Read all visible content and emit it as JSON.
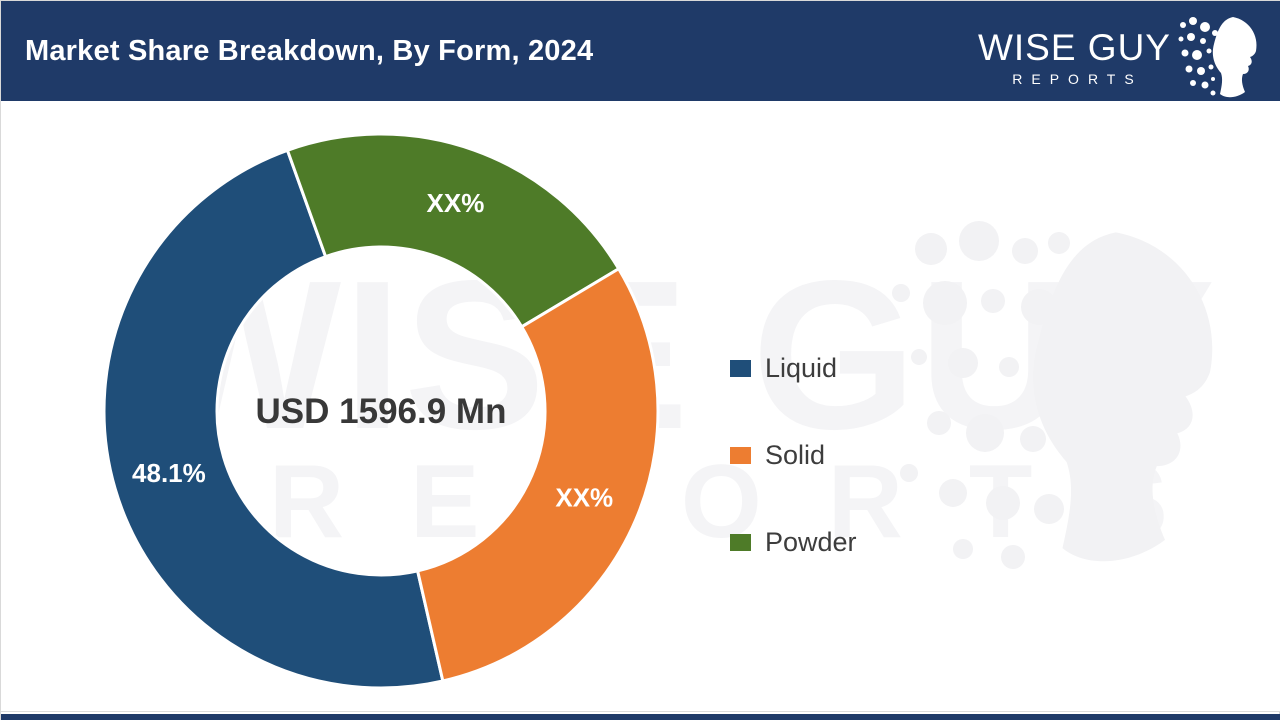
{
  "header": {
    "title": "Market Share Breakdown, By Form, 2024",
    "logo": {
      "line1": "WISE GUY",
      "line2": "REPORTS"
    }
  },
  "watermark": {
    "line1": "WISE GUY",
    "line2": "REPORTS"
  },
  "colors": {
    "header_bg": "#1F3A68",
    "footer_bg": "#1F3A68",
    "text_dark": "#383838",
    "watermark": "#F4F4F6"
  },
  "chart_data": {
    "type": "pie",
    "subtype": "donut",
    "title": "Market Share Breakdown, By Form, 2024",
    "center_label": "USD 1596.9 Mn",
    "legend_position": "right",
    "start_angle_deg": 167.1,
    "draw_order": [
      0,
      2,
      1
    ],
    "segments": [
      {
        "name": "Liquid",
        "label": "48.1%",
        "value_pct": 48.1,
        "color": "#1F4E79"
      },
      {
        "name": "Solid",
        "label": "XX%",
        "value_pct": 30.0,
        "color": "#ED7D31"
      },
      {
        "name": "Powder",
        "label": "XX%",
        "value_pct": 21.9,
        "color": "#4E7B28"
      }
    ]
  }
}
